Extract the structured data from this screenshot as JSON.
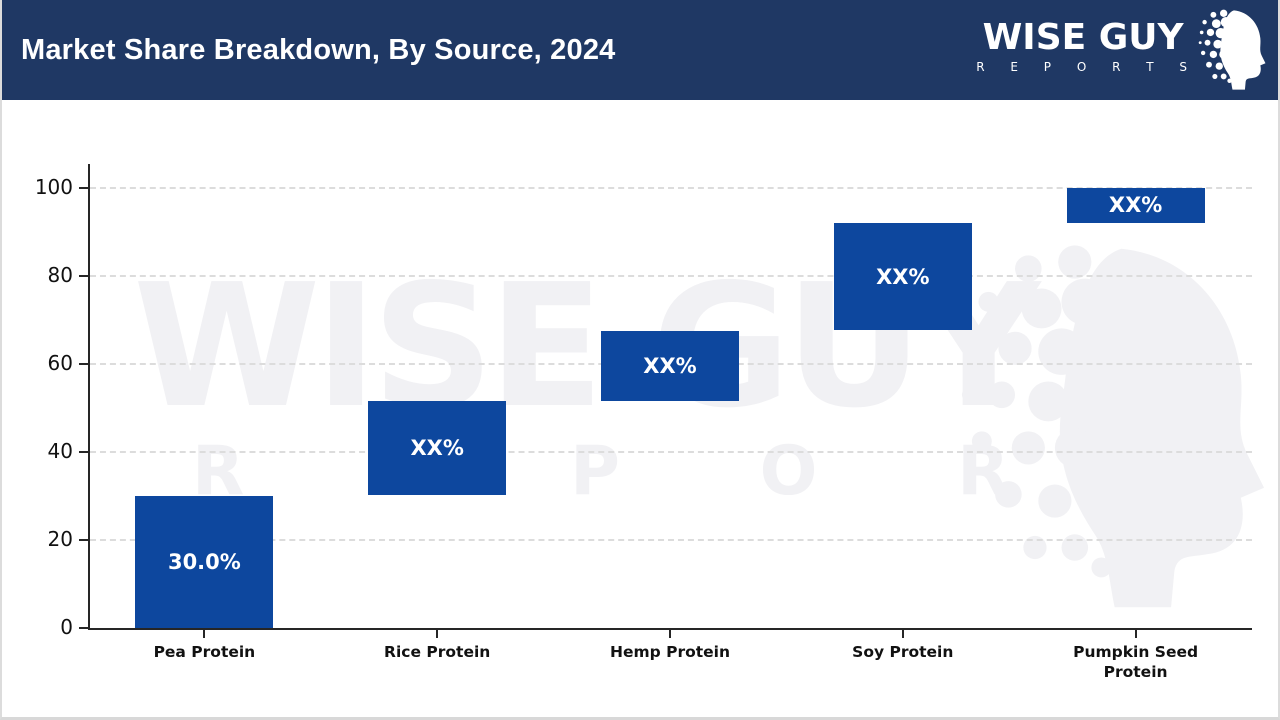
{
  "header": {
    "title": "Market Share Breakdown, By Source, 2024",
    "logo": {
      "name": "WISE GUY",
      "sub": "R E P O R T S"
    }
  },
  "watermark": {
    "name": "WISE GUY",
    "sub": "R E P O R T S"
  },
  "chart_data": {
    "type": "bar",
    "subtype": "waterfall",
    "title": "Market Share Breakdown, By Source, 2024",
    "categories": [
      "Pea Protein",
      "Rice Protein",
      "Hemp Protein",
      "Soy Protein",
      "Pumpkin Seed Protein"
    ],
    "segments": [
      {
        "category": "Pea Protein",
        "start": 0,
        "end": 30,
        "label": "30.0%"
      },
      {
        "category": "Rice Protein",
        "start": 30,
        "end": 51.5,
        "label": "XX%"
      },
      {
        "category": "Hemp Protein",
        "start": 51.5,
        "end": 67.5,
        "label": "XX%"
      },
      {
        "category": "Soy Protein",
        "start": 67.5,
        "end": 92,
        "label": "XX%"
      },
      {
        "category": "Pumpkin Seed Protein",
        "start": 92,
        "end": 100,
        "label": "XX%"
      }
    ],
    "xlabel": "",
    "ylabel": "",
    "ylim": [
      0,
      100
    ],
    "yticks": [
      0,
      20,
      40,
      60,
      80,
      100
    ],
    "grid": "horizontal-dashed",
    "legend": "none",
    "bar_color": "#0d479e",
    "value_label_color": "#ffffff"
  },
  "colors": {
    "header_bg": "#1f3864",
    "axis": "#262626",
    "gridline": "#dcdcdc",
    "tick_label": "#111111",
    "watermark": "#f1f1f4"
  }
}
